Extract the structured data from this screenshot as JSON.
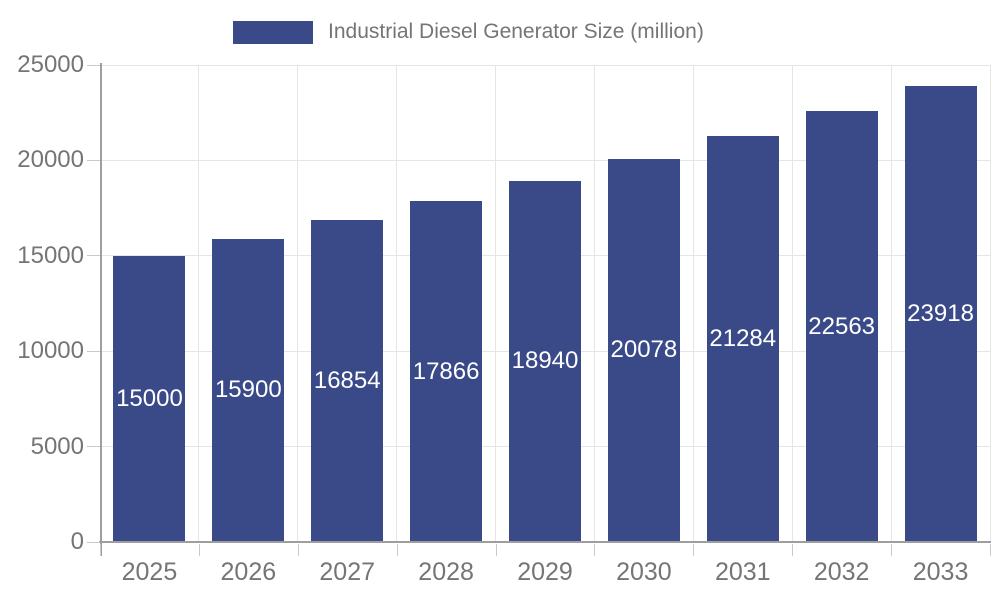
{
  "legend": {
    "label": "Industrial Diesel Generator Size (million)"
  },
  "colors": {
    "bar": "#3a4a88",
    "grid": "#e5e5e5",
    "axis": "#9e9e9e",
    "tick": "#c9c9c9",
    "axis_label": "#757575",
    "value_label": "#ffffff",
    "background": "#ffffff"
  },
  "chart_data": {
    "type": "bar",
    "title": "Industrial Diesel Generator Size (million)",
    "series_name": "Industrial Diesel Generator Size (million)",
    "categories": [
      "2025",
      "2026",
      "2027",
      "2028",
      "2029",
      "2030",
      "2031",
      "2032",
      "2033"
    ],
    "values": [
      15000,
      15900,
      16854,
      17866,
      18940,
      20078,
      21284,
      22563,
      23918
    ],
    "xlabel": "",
    "ylabel": "",
    "ylim": [
      0,
      25000
    ],
    "yticks": [
      0,
      5000,
      10000,
      15000,
      20000,
      25000
    ],
    "grid": true,
    "legend_position": "top",
    "value_labels_position": "inside-center"
  }
}
